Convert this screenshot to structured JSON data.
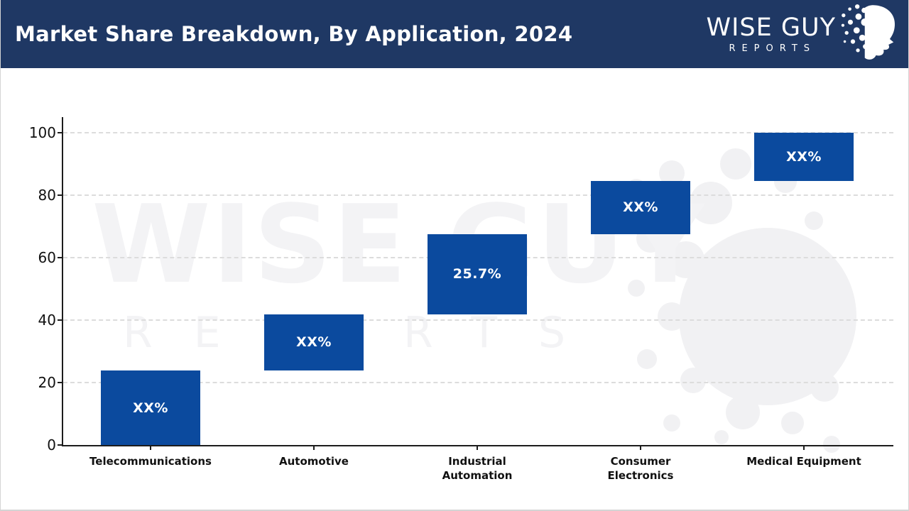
{
  "header": {
    "title": "Market Share Breakdown, By Application, 2024",
    "logo": {
      "line1": "WISE GUY",
      "line2": "REPORTS"
    }
  },
  "watermark": {
    "line1": "WISE GUY",
    "line2": "REPORTS"
  },
  "colors": {
    "header_bg": "#1f3864",
    "bar": "#0b4a9e",
    "grid": "#dcdcdc",
    "axis": "#1c1c1c",
    "bar_label_text": "#ffffff",
    "watermark": "#f3f3f5"
  },
  "chart_data": {
    "type": "bar",
    "subtype": "waterfall",
    "title": "Market Share Breakdown, By Application, 2024",
    "xlabel": "",
    "ylabel": "",
    "ylim": [
      0,
      105
    ],
    "yticks": [
      0,
      20,
      40,
      60,
      80,
      100
    ],
    "grid": "horizontal-dashed",
    "legend": "none",
    "categories": [
      "Telecommunications",
      "Automotive",
      "Industrial Automation",
      "Consumer Electronics",
      "Medical Equipment"
    ],
    "category_lines": [
      [
        "Telecommunications"
      ],
      [
        "Automotive"
      ],
      [
        "Industrial",
        "Automation"
      ],
      [
        "Consumer",
        "Electronics"
      ],
      [
        "Medical Equipment"
      ]
    ],
    "values": [
      23.8,
      18.1,
      25.7,
      16.9,
      15.5
    ],
    "segments": [
      {
        "category": "Telecommunications",
        "start": 0,
        "end": 23.8,
        "value": 23.8,
        "label": "XX%"
      },
      {
        "category": "Automotive",
        "start": 23.8,
        "end": 41.9,
        "value": 18.1,
        "label": "XX%"
      },
      {
        "category": "Industrial Automation",
        "start": 41.9,
        "end": 67.6,
        "value": 25.7,
        "label": "25.7%"
      },
      {
        "category": "Consumer Electronics",
        "start": 67.6,
        "end": 84.5,
        "value": 16.9,
        "label": "XX%"
      },
      {
        "category": "Medical Equipment",
        "start": 84.5,
        "end": 100,
        "value": 15.5,
        "label": "XX%"
      }
    ]
  }
}
